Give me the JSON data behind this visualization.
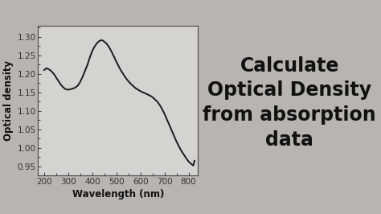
{
  "bg_color": "#b8b5b0",
  "plot_bg_color": "#e0dedd",
  "plot_inner_color": "#d5d3d0",
  "text_color": "#111111",
  "line_color": "#1a1a1a",
  "xlabel": "Wavelength (nm)",
  "ylabel": "Optical density",
  "xlim": [
    175,
    840
  ],
  "ylim": [
    0.925,
    1.33
  ],
  "xticks": [
    200,
    300,
    400,
    500,
    600,
    700,
    800
  ],
  "yticks": [
    0.95,
    1.0,
    1.05,
    1.1,
    1.15,
    1.2,
    1.25,
    1.3
  ],
  "ytick_labels": [
    "0.95",
    "1.00",
    "1.05",
    "1.10",
    "1.15",
    "1.20",
    "1.25",
    "1.30"
  ],
  "title_lines": [
    "Calculate",
    "Optical Density",
    "from absorption",
    "data"
  ],
  "title_fontsize": 17,
  "axis_label_fontsize": 8.5,
  "tick_fontsize": 7.5,
  "wavelengths": [
    200,
    210,
    220,
    230,
    240,
    250,
    260,
    270,
    280,
    290,
    300,
    310,
    320,
    330,
    340,
    350,
    360,
    370,
    380,
    390,
    400,
    410,
    420,
    430,
    440,
    450,
    460,
    470,
    480,
    490,
    500,
    510,
    520,
    530,
    540,
    550,
    560,
    570,
    580,
    590,
    600,
    610,
    620,
    630,
    640,
    650,
    660,
    670,
    680,
    690,
    700,
    710,
    720,
    730,
    740,
    750,
    760,
    770,
    780,
    790,
    800,
    810,
    820,
    825
  ],
  "od_values": [
    1.21,
    1.215,
    1.212,
    1.207,
    1.2,
    1.19,
    1.18,
    1.17,
    1.163,
    1.158,
    1.157,
    1.158,
    1.16,
    1.163,
    1.168,
    1.178,
    1.192,
    1.208,
    1.224,
    1.244,
    1.262,
    1.274,
    1.283,
    1.289,
    1.291,
    1.287,
    1.281,
    1.272,
    1.26,
    1.247,
    1.233,
    1.22,
    1.208,
    1.198,
    1.188,
    1.18,
    1.173,
    1.167,
    1.161,
    1.157,
    1.153,
    1.15,
    1.147,
    1.144,
    1.141,
    1.137,
    1.131,
    1.125,
    1.116,
    1.105,
    1.092,
    1.077,
    1.062,
    1.047,
    1.032,
    1.017,
    1.004,
    0.992,
    0.982,
    0.972,
    0.963,
    0.957,
    0.952,
    0.965
  ]
}
